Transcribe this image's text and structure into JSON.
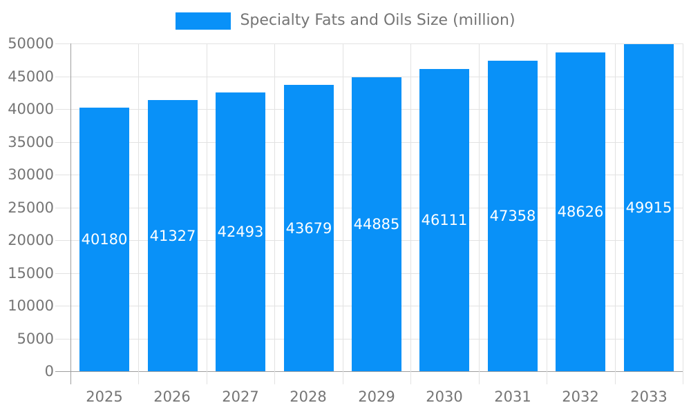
{
  "chart_data": {
    "type": "bar",
    "title": "Specialty Fats and Oils Size (million)",
    "categories": [
      "2025",
      "2026",
      "2027",
      "2028",
      "2029",
      "2030",
      "2031",
      "2032",
      "2033"
    ],
    "values": [
      40180,
      41327,
      42493,
      43679,
      44885,
      46111,
      47358,
      48626,
      49915
    ],
    "series_name": "Specialty Fats and Oils Size (million)",
    "xlabel": "",
    "ylabel": "",
    "ylim": [
      0,
      50000
    ],
    "ytick_step": 5000,
    "ytick_labels": [
      "0",
      "5000",
      "10000",
      "15000",
      "20000",
      "25000",
      "30000",
      "35000",
      "40000",
      "45000",
      "50000"
    ],
    "grid": "on",
    "legend_position": "top-center",
    "value_labels_inside_bars": true,
    "colors": {
      "bar": "#0991f8",
      "value_label": "#ffffff",
      "axis_text": "#757575",
      "gridline": "#e2e2e2",
      "axis_line": "#9e9e9e",
      "background": "#ffffff"
    }
  }
}
